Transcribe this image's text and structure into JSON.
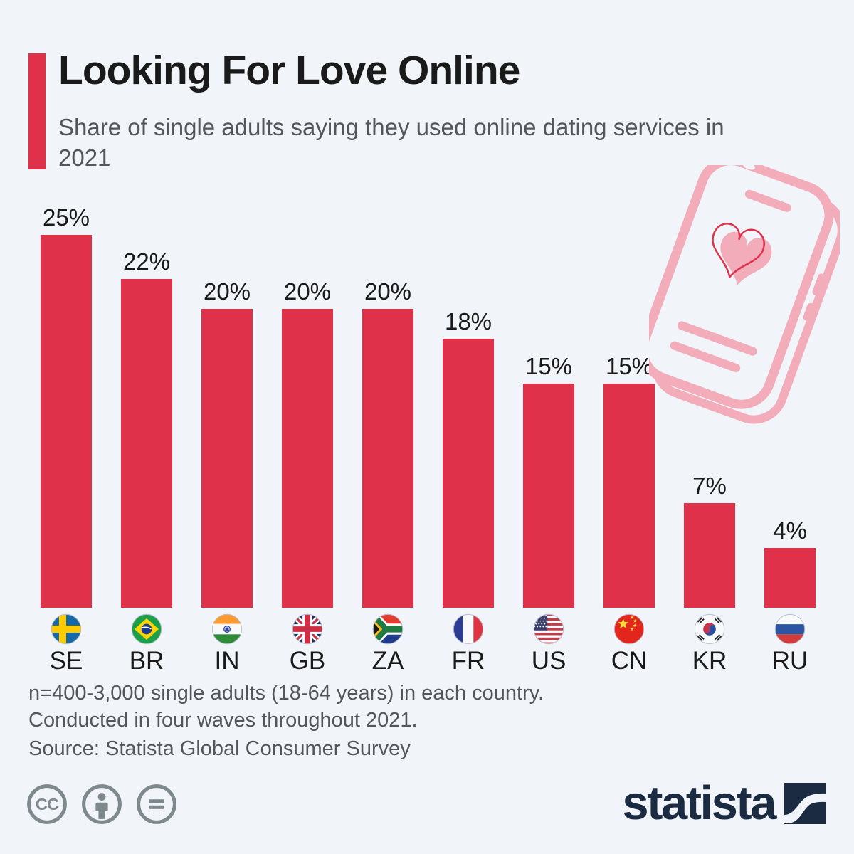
{
  "header": {
    "title": "Looking For Love Online",
    "subtitle": "Share of single adults saying they used online dating services in 2021"
  },
  "chart_data": {
    "type": "bar",
    "title": "Looking For Love Online",
    "subtitle": "Share of single adults saying they used online dating services in 2021",
    "unit": "%",
    "categories": [
      "SE",
      "BR",
      "IN",
      "GB",
      "ZA",
      "FR",
      "US",
      "CN",
      "KR",
      "RU"
    ],
    "values": [
      25,
      22,
      20,
      20,
      20,
      18,
      15,
      15,
      7,
      4
    ],
    "labels": [
      "25%",
      "22%",
      "20%",
      "20%",
      "20%",
      "18%",
      "15%",
      "15%",
      "7%",
      "4%"
    ],
    "countries": [
      {
        "code": "SE",
        "name": "Sweden",
        "flag_icon": "sweden-flag-icon"
      },
      {
        "code": "BR",
        "name": "Brazil",
        "flag_icon": "brazil-flag-icon"
      },
      {
        "code": "IN",
        "name": "India",
        "flag_icon": "india-flag-icon"
      },
      {
        "code": "GB",
        "name": "United Kingdom",
        "flag_icon": "united-kingdom-flag-icon"
      },
      {
        "code": "ZA",
        "name": "South Africa",
        "flag_icon": "south-africa-flag-icon"
      },
      {
        "code": "FR",
        "name": "France",
        "flag_icon": "france-flag-icon"
      },
      {
        "code": "US",
        "name": "United States",
        "flag_icon": "united-states-flag-icon"
      },
      {
        "code": "CN",
        "name": "China",
        "flag_icon": "china-flag-icon"
      },
      {
        "code": "KR",
        "name": "South Korea",
        "flag_icon": "south-korea-flag-icon"
      },
      {
        "code": "RU",
        "name": "Russia",
        "flag_icon": "russia-flag-icon"
      }
    ],
    "ylim": [
      0,
      25
    ],
    "grid": false,
    "legend": false,
    "bar_color": "#E0314B",
    "value_labels_shown": true
  },
  "footer": {
    "note_line1": "n=400-3,000 single adults (18-64 years) in each country.",
    "note_line2": "Conducted in four waves throughout 2021.",
    "source": "Source: Statista Global Consumer Survey"
  },
  "branding": {
    "logo_text": "statista",
    "license_icons": [
      "creative-commons-icon",
      "attribution-icon",
      "no-derivatives-icon"
    ]
  },
  "colors": {
    "background": "#F1F4F8",
    "bar": "#E0314B",
    "accent_bar": "#E0314B",
    "title_text": "#1A1A1A",
    "muted_text": "#54565B",
    "illustration_pink": "#F2ACBA",
    "illustration_red": "#E0314B",
    "brand_navy": "#1A2B42",
    "license_gray": "#7D898D"
  }
}
